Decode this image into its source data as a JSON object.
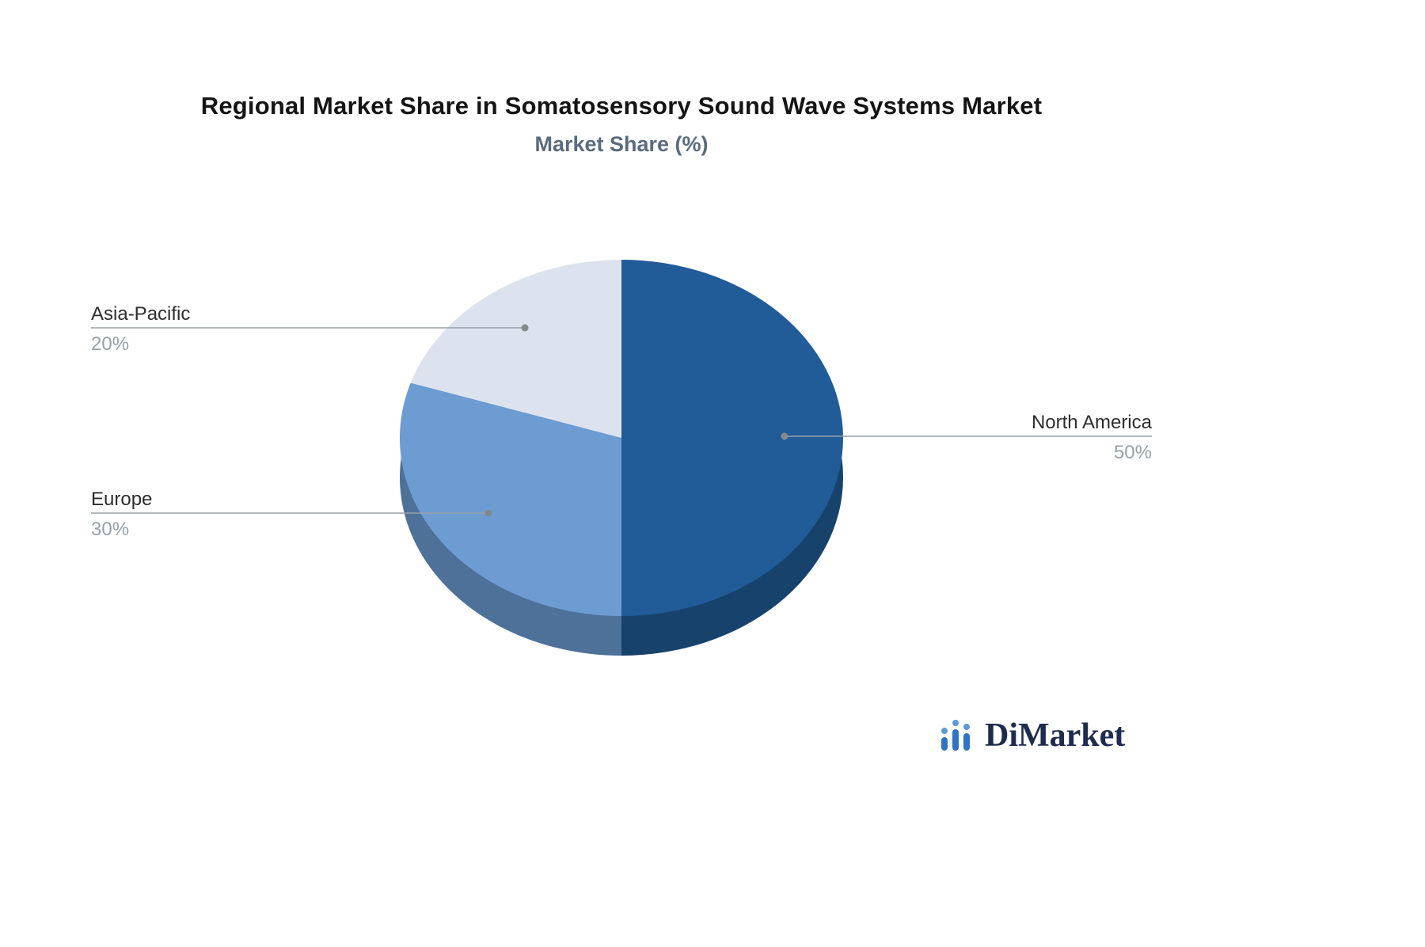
{
  "header": {
    "title": "Regional Market Share in Somatosensory Sound Wave Systems Market",
    "subtitle": "Market Share (%)"
  },
  "chart_data": {
    "type": "pie",
    "title": "Regional Market Share in Somatosensory Sound Wave Systems Market",
    "subtitle": "Market Share (%)",
    "unit": "%",
    "start_angle_deg": 0,
    "clockwise": true,
    "style": "3d-depth",
    "legend_position": "none",
    "series": [
      {
        "name": "North America",
        "value": 50,
        "label_value": "50%",
        "color": "#215C99",
        "depth_color": "#17426C"
      },
      {
        "name": "Europe",
        "value": 30,
        "label_value": "30%",
        "color": "#6D9CD3",
        "depth_color": "#4E7199"
      },
      {
        "name": "Asia-Pacific",
        "value": 20,
        "label_value": "20%",
        "color": "#DDE3EE",
        "depth_color": "#B0BDD2"
      }
    ],
    "colors": {
      "leader_line": "#9aa0a6",
      "leader_dot": "#85898d",
      "label_name_text": "#2d2d2d",
      "label_value_text": "#95a0aa"
    }
  },
  "brand": {
    "name": "DiMarket",
    "accent": "#2e73c4"
  }
}
